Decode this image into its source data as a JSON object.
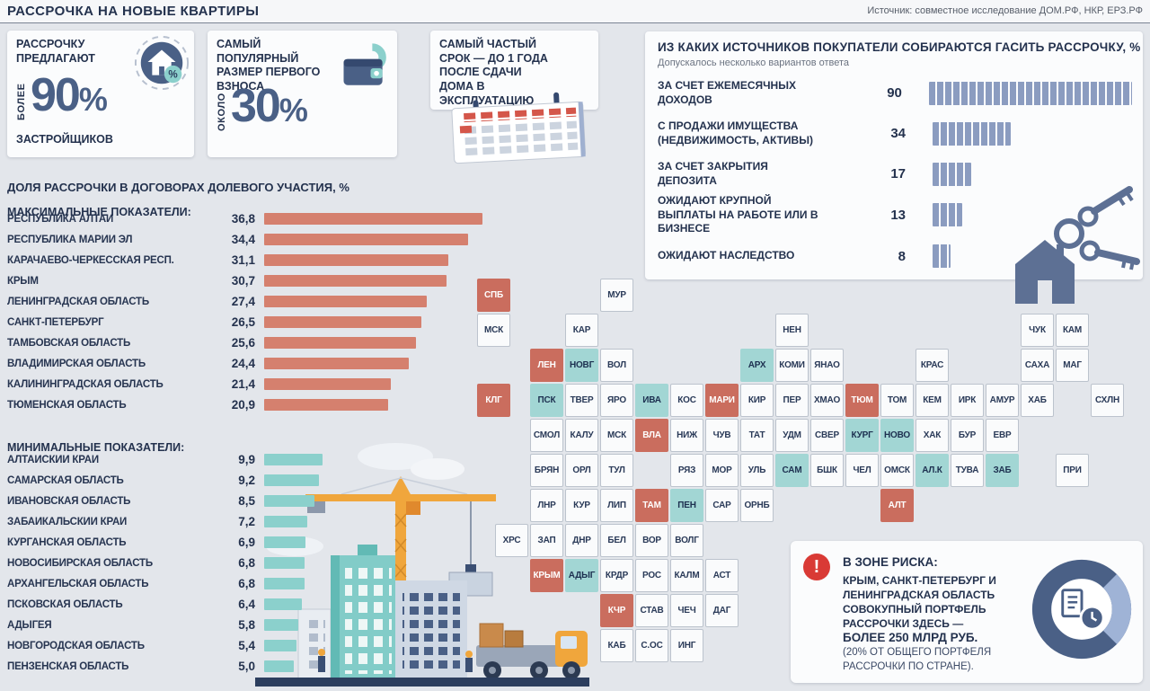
{
  "header": {
    "title": "РАССРОЧКА НА НОВЫЕ КВАРТИРЫ",
    "source": "Источник: совместное исследование ДОМ.РФ, НКР, ЕРЗ.РФ"
  },
  "cards": {
    "developers": {
      "heading": "РАССРОЧКУ ПРЕДЛАГАЮТ",
      "qualifier": "БОЛЕЕ",
      "value": "90",
      "unit": "%",
      "subheading": "ЗАСТРОЙЩИКОВ",
      "icon": "house-percent-donut-icon"
    },
    "down_payment": {
      "heading": "САМЫЙ ПОПУЛЯРНЫЙ РАЗМЕР ПЕРВОГО ВЗНОСА",
      "qualifier": "ОКОЛО",
      "value": "30",
      "unit": "%",
      "icon": "wallet-icon"
    },
    "term": {
      "text": "САМЫЙ ЧАСТЫЙ СРОК — ДО 1 ГОДА ПОСЛЕ СДАЧИ ДОМА В ЭКСПЛУАТАЦИЮ",
      "icon": "flip-calendar-icon"
    }
  },
  "chart_data": [
    {
      "type": "bar",
      "orientation": "horizontal",
      "title": "ИЗ КАКИХ ИСТОЧНИКОВ ПОКУПАТЕЛИ СОБИРАЮТСЯ ГАСИТЬ РАССРОЧКУ, %",
      "subtitle": "Допускалось несколько вариантов ответа",
      "categories": [
        "ЗА СЧЕТ ЕЖЕМЕСЯЧНЫХ ДОХОДОВ",
        "С ПРОДАЖИ ИМУЩЕСТВА (НЕДВИЖИМОСТЬ, АКТИВЫ)",
        "ЗА СЧЕТ ЗАКРЫТИЯ ДЕПОЗИТА",
        "ОЖИДАЮТ КРУПНОЙ ВЫПЛАТЫ НА РАБОТЕ ИЛИ В БИЗНЕСЕ",
        "ОЖИДАЮТ НАСЛЕДСТВО"
      ],
      "values": [
        90,
        34,
        17,
        13,
        8
      ],
      "xlim": [
        0,
        100
      ],
      "grid": false,
      "bar_color": "#8b9cc0",
      "icon": "keys-house-icon"
    },
    {
      "type": "bar",
      "orientation": "horizontal",
      "title": "ДОЛЯ РАССРОЧКИ В ДОГОВОРАХ ДОЛЕВОГО УЧАСТИЯ, %",
      "group": "МАКСИМАЛЬНЫЕ ПОКАЗАТЕЛИ:",
      "categories": [
        "РЕСПУБЛИКА АЛТАЙ",
        "РЕСПУБЛИКА МАРИЙ ЭЛ",
        "КАРАЧАЕВО-ЧЕРКЕССКАЯ РЕСП.",
        "КРЫМ",
        "ЛЕНИНГРАДСКАЯ ОБЛАСТЬ",
        "САНКТ-ПЕТЕРБУРГ",
        "ТАМБОВСКАЯ ОБЛАСТЬ",
        "ВЛАДИМИРСКАЯ ОБЛАСТЬ",
        "КАЛИНИНГРАДСКАЯ ОБЛАСТЬ",
        "ТЮМЕНСКАЯ ОБЛАСТЬ"
      ],
      "values": [
        36.8,
        34.4,
        31.1,
        30.7,
        27.4,
        26.5,
        25.6,
        24.4,
        21.4,
        20.9
      ],
      "xlim": [
        0,
        40
      ],
      "grid": false,
      "bar_color": "#d5806e"
    },
    {
      "type": "bar",
      "orientation": "horizontal",
      "title": "ДОЛЯ РАССРОЧКИ В ДОГОВОРАХ ДОЛЕВОГО УЧАСТИЯ, %",
      "group": "МИНИМАЛЬНЫЕ ПОКАЗАТЕЛИ:",
      "categories": [
        "АЛТАЙСКИЙ КРАЙ",
        "САМАРСКАЯ ОБЛАСТЬ",
        "ИВАНОВСКАЯ ОБЛАСТЬ",
        "ЗАБАЙКАЛЬСКИЙ КРАЙ",
        "КУРГАНСКАЯ ОБЛАСТЬ",
        "НОВОСИБИРСКАЯ ОБЛАСТЬ",
        "АРХАНГЕЛЬСКАЯ ОБЛАСТЬ",
        "ПСКОВСКАЯ ОБЛАСТЬ",
        "АДЫГЕЯ",
        "НОВГОРОДСКАЯ ОБЛАСТЬ",
        "ПЕНЗЕНСКАЯ ОБЛАСТЬ"
      ],
      "values": [
        9.9,
        9.2,
        8.5,
        7.2,
        6.9,
        6.8,
        6.8,
        6.4,
        5.8,
        5.4,
        5.0
      ],
      "xlim": [
        0,
        40
      ],
      "grid": false,
      "bar_color": "#8bd0cc"
    }
  ],
  "map": {
    "legend": {
      "hi": "максимальные показатели",
      "lo": "минимальные показатели"
    },
    "tiles": [
      {
        "t": "СПБ",
        "c": 0,
        "r": 0,
        "dx": -20,
        "k": "hi"
      },
      {
        "t": "МУР",
        "c": 3,
        "r": 0
      },
      {
        "t": "МСК",
        "c": 0,
        "r": 1,
        "dx": -20
      },
      {
        "t": "КАР",
        "c": 2,
        "r": 1
      },
      {
        "t": "НЕН",
        "c": 8,
        "r": 1
      },
      {
        "t": "ЧУК",
        "c": 15,
        "r": 1
      },
      {
        "t": "КАМ",
        "c": 16,
        "r": 1
      },
      {
        "t": "ЛЕН",
        "c": 1,
        "r": 2,
        "k": "hi"
      },
      {
        "t": "НОВГ",
        "c": 2,
        "r": 2,
        "k": "lo"
      },
      {
        "t": "ВОЛ",
        "c": 3,
        "r": 2
      },
      {
        "t": "АРХ",
        "c": 7,
        "r": 2,
        "k": "lo"
      },
      {
        "t": "КОМИ",
        "c": 8,
        "r": 2
      },
      {
        "t": "ЯНАО",
        "c": 9,
        "r": 2
      },
      {
        "t": "КРАС",
        "c": 12,
        "r": 2
      },
      {
        "t": "САХА",
        "c": 15,
        "r": 2
      },
      {
        "t": "МАГ",
        "c": 16,
        "r": 2
      },
      {
        "t": "КЛГ",
        "c": 0,
        "r": 3,
        "dx": -20,
        "k": "hi"
      },
      {
        "t": "ПСК",
        "c": 1,
        "r": 3,
        "k": "lo"
      },
      {
        "t": "ТВЕР",
        "c": 2,
        "r": 3
      },
      {
        "t": "ЯРО",
        "c": 3,
        "r": 3
      },
      {
        "t": "ИВА",
        "c": 4,
        "r": 3,
        "k": "lo"
      },
      {
        "t": "КОС",
        "c": 5,
        "r": 3
      },
      {
        "t": "МАРИ",
        "c": 6,
        "r": 3,
        "k": "hi"
      },
      {
        "t": "КИР",
        "c": 7,
        "r": 3
      },
      {
        "t": "ПЕР",
        "c": 8,
        "r": 3
      },
      {
        "t": "ХМАО",
        "c": 9,
        "r": 3
      },
      {
        "t": "ТЮМ",
        "c": 10,
        "r": 3,
        "k": "hi"
      },
      {
        "t": "ТОМ",
        "c": 11,
        "r": 3
      },
      {
        "t": "КЕМ",
        "c": 12,
        "r": 3
      },
      {
        "t": "ИРК",
        "c": 13,
        "r": 3
      },
      {
        "t": "АМУР",
        "c": 14,
        "r": 3
      },
      {
        "t": "ХАБ",
        "c": 15,
        "r": 3
      },
      {
        "t": "СХЛН",
        "c": 17,
        "r": 3
      },
      {
        "t": "СМОЛ",
        "c": 1,
        "r": 4
      },
      {
        "t": "КАЛУ",
        "c": 2,
        "r": 4
      },
      {
        "t": "МСК",
        "c": 3,
        "r": 4
      },
      {
        "t": "ВЛА",
        "c": 4,
        "r": 4,
        "k": "hi"
      },
      {
        "t": "НИЖ",
        "c": 5,
        "r": 4
      },
      {
        "t": "ЧУВ",
        "c": 6,
        "r": 4
      },
      {
        "t": "ТАТ",
        "c": 7,
        "r": 4
      },
      {
        "t": "УДМ",
        "c": 8,
        "r": 4
      },
      {
        "t": "СВЕР",
        "c": 9,
        "r": 4
      },
      {
        "t": "КУРГ",
        "c": 10,
        "r": 4,
        "k": "lo"
      },
      {
        "t": "НОВО",
        "c": 11,
        "r": 4,
        "k": "lo"
      },
      {
        "t": "ХАК",
        "c": 12,
        "r": 4
      },
      {
        "t": "БУР",
        "c": 13,
        "r": 4
      },
      {
        "t": "ЕВР",
        "c": 14,
        "r": 4
      },
      {
        "t": "БРЯН",
        "c": 1,
        "r": 5
      },
      {
        "t": "ОРЛ",
        "c": 2,
        "r": 5
      },
      {
        "t": "ТУЛ",
        "c": 3,
        "r": 5
      },
      {
        "t": "РЯЗ",
        "c": 5,
        "r": 5
      },
      {
        "t": "МОР",
        "c": 6,
        "r": 5
      },
      {
        "t": "УЛЬ",
        "c": 7,
        "r": 5
      },
      {
        "t": "САМ",
        "c": 8,
        "r": 5,
        "k": "lo"
      },
      {
        "t": "БШК",
        "c": 9,
        "r": 5
      },
      {
        "t": "ЧЕЛ",
        "c": 10,
        "r": 5
      },
      {
        "t": "ОМСК",
        "c": 11,
        "r": 5
      },
      {
        "t": "АЛ.К",
        "c": 12,
        "r": 5,
        "k": "lo"
      },
      {
        "t": "ТУВА",
        "c": 13,
        "r": 5
      },
      {
        "t": "ЗАБ",
        "c": 14,
        "r": 5,
        "k": "lo"
      },
      {
        "t": "ПРИ",
        "c": 16,
        "r": 5
      },
      {
        "t": "ЛНР",
        "c": 1,
        "r": 6
      },
      {
        "t": "КУР",
        "c": 2,
        "r": 6
      },
      {
        "t": "ЛИП",
        "c": 3,
        "r": 6
      },
      {
        "t": "ТАМ",
        "c": 4,
        "r": 6,
        "k": "hi"
      },
      {
        "t": "ПЕН",
        "c": 5,
        "r": 6,
        "k": "lo"
      },
      {
        "t": "САР",
        "c": 6,
        "r": 6
      },
      {
        "t": "ОРНБ",
        "c": 7,
        "r": 6
      },
      {
        "t": "АЛТ",
        "c": 11,
        "r": 6,
        "k": "hi"
      },
      {
        "t": "ХРС",
        "c": 0,
        "r": 7
      },
      {
        "t": "ЗАП",
        "c": 1,
        "r": 7
      },
      {
        "t": "ДНР",
        "c": 2,
        "r": 7
      },
      {
        "t": "БЕЛ",
        "c": 3,
        "r": 7
      },
      {
        "t": "ВОР",
        "c": 4,
        "r": 7
      },
      {
        "t": "ВОЛГ",
        "c": 5,
        "r": 7
      },
      {
        "t": "КРЫМ",
        "c": 1,
        "r": 8,
        "k": "hi"
      },
      {
        "t": "АДЫГ",
        "c": 2,
        "r": 8,
        "k": "lo"
      },
      {
        "t": "КРДР",
        "c": 3,
        "r": 8
      },
      {
        "t": "РОС",
        "c": 4,
        "r": 8
      },
      {
        "t": "КАЛМ",
        "c": 5,
        "r": 8
      },
      {
        "t": "АСТ",
        "c": 6,
        "r": 8
      },
      {
        "t": "КЧР",
        "c": 3,
        "r": 9,
        "k": "hi"
      },
      {
        "t": "СТАВ",
        "c": 4,
        "r": 9
      },
      {
        "t": "ЧЕЧ",
        "c": 5,
        "r": 9
      },
      {
        "t": "ДАГ",
        "c": 6,
        "r": 9
      },
      {
        "t": "КАБ",
        "c": 3,
        "r": 10
      },
      {
        "t": "С.ОС",
        "c": 4,
        "r": 10
      },
      {
        "t": "ИНГ",
        "c": 5,
        "r": 10
      }
    ]
  },
  "risk": {
    "title": "В ЗОНЕ РИСКА:",
    "text": "КРЫМ, САНКТ-ПЕТЕРБУРГ И ЛЕНИНГРАДСКАЯ ОБЛАСТЬ СОВОКУПНЫЙ ПОРТФЕЛЬ РАССРОЧКИ ЗДЕСЬ —",
    "highlight": "БОЛЕЕ 250 МЛРД РУБ.",
    "note": "(20% ОТ ОБЩЕГО ПОРТФЕЛЯ РАССРОЧКИ ПО СТРАНЕ).",
    "warning_glyph": "!",
    "icons": [
      "warning-icon",
      "portfolio-clock-donut-icon"
    ]
  },
  "colors": {
    "bg": "#e3e6eb",
    "card": "#fbfcfd",
    "navy": "#24324e",
    "big-number": "#4a6086",
    "bar-red": "#d5806e",
    "bar-teal": "#8bd0cc",
    "bar-blue": "#8b9cc0",
    "tile-red": "#ca6d5e",
    "tile-teal": "#a2d6d4",
    "risk-red": "#d93a35",
    "steel": "#5d7094"
  }
}
